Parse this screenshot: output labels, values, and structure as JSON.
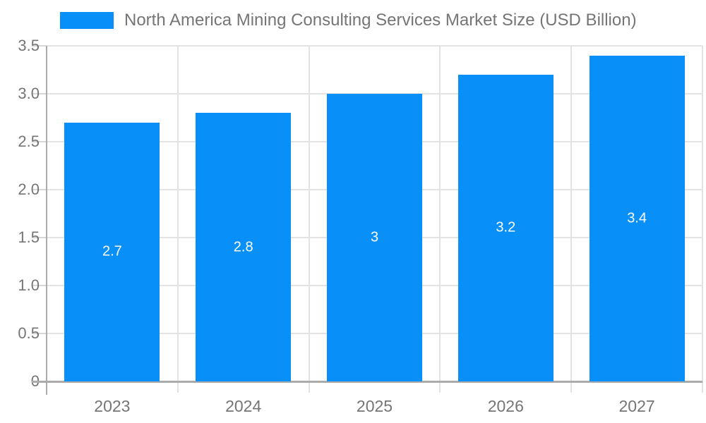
{
  "legend": {
    "label": "North America Mining Consulting Services Market Size (USD Billion)",
    "swatch_color": "#0990f8"
  },
  "colors": {
    "bar": "#0990f8",
    "axis_label": "#757575",
    "grid": "#e3e3e3",
    "tick": "#d6d6d6",
    "axis_line": "#ababab",
    "value_label": "#ffffff",
    "background": "#ffffff"
  },
  "chart_data": {
    "type": "bar",
    "title": "North America Mining Consulting Services Market Size (USD Billion)",
    "categories": [
      "2023",
      "2024",
      "2025",
      "2026",
      "2027"
    ],
    "values": [
      2.7,
      2.8,
      3,
      3.2,
      3.4
    ],
    "value_labels": [
      "2.7",
      "2.8",
      "3",
      "3.2",
      "3.4"
    ],
    "xlabel": "",
    "ylabel": "",
    "ylim": [
      0,
      3.5
    ],
    "ytick_labels": [
      "0",
      "0.5",
      "1.0",
      "1.5",
      "2.0",
      "2.5",
      "3.0",
      "3.5"
    ],
    "grid": true,
    "legend_position": "top",
    "bar_color": "#0990f8"
  }
}
